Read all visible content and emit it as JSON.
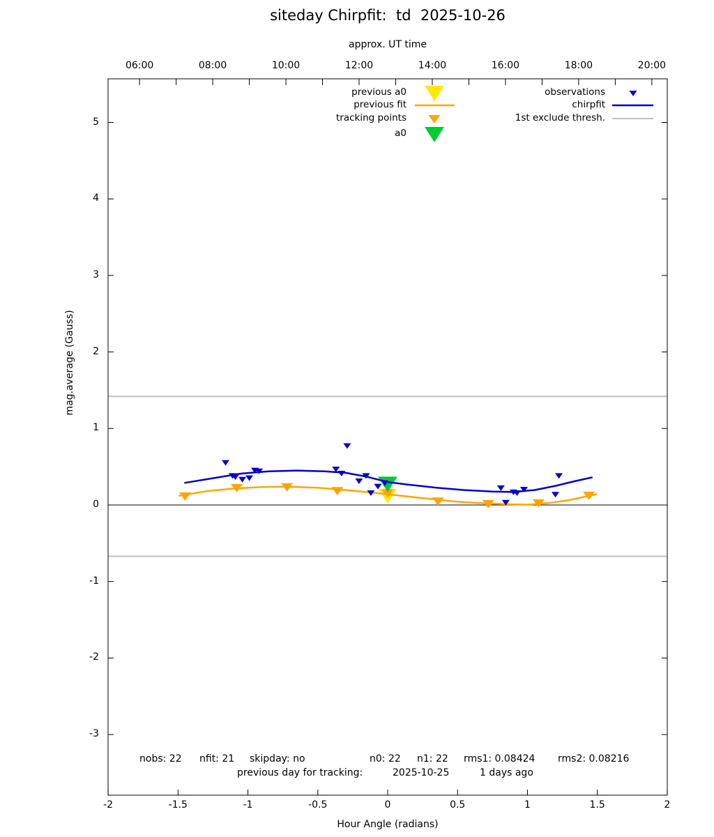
{
  "chart_data": {
    "type": "scatter",
    "title": "siteday Chirpfit:  td  2025-10-26",
    "top_axis": {
      "label": "approx. UT time",
      "ticks": [
        {
          "label": "06:00",
          "hour": 6
        },
        {
          "label": "08:00",
          "hour": 8
        },
        {
          "label": "10:00",
          "hour": 10
        },
        {
          "label": "12:00",
          "hour": 12
        },
        {
          "label": "14:00",
          "hour": 14
        },
        {
          "label": "16:00",
          "hour": 16
        },
        {
          "label": "18:00",
          "hour": 18
        },
        {
          "label": "20:00",
          "hour": 20
        }
      ],
      "minor_hours": [
        7,
        9,
        11,
        13,
        15,
        17,
        19
      ]
    },
    "x_axis": {
      "label": "Hour Angle (radians)",
      "range": [
        -2,
        2
      ],
      "ticks": [
        -2,
        -1.5,
        -1,
        -0.5,
        0,
        0.5,
        1,
        1.5,
        2
      ]
    },
    "y_axis": {
      "label": "mag.average (Gauss)",
      "range": [
        -3.8,
        5.6
      ],
      "ticks": [
        5,
        4,
        3,
        2,
        1,
        0,
        -1,
        -2,
        -3
      ]
    },
    "grid": false,
    "legend": {
      "left": [
        {
          "label": "previous a0",
          "swatch": "triangle",
          "size": "large",
          "series": "previous_a0"
        },
        {
          "label": "previous fit",
          "swatch": "line",
          "series": "previous_fit"
        },
        {
          "label": "tracking points",
          "swatch": "triangle",
          "size": "medium",
          "series": "tracking_points"
        },
        {
          "label": "a0",
          "swatch": "triangle",
          "size": "large",
          "series": "a0"
        }
      ],
      "right": [
        {
          "label": "observations",
          "swatch": "triangle",
          "size": "small",
          "series": "observations"
        },
        {
          "label": "chirpfit",
          "swatch": "line",
          "series": "chirpfit"
        },
        {
          "label": "1st exclude thresh.",
          "swatch": "line",
          "series": "exclude_threshold"
        }
      ]
    },
    "series": {
      "observations": {
        "color": "#0000cd",
        "marker": "triangle-down",
        "points": [
          [
            -1.16,
            0.55
          ],
          [
            -1.11,
            0.38
          ],
          [
            -1.09,
            0.365
          ],
          [
            -1.04,
            0.33
          ],
          [
            -0.99,
            0.35
          ],
          [
            -0.95,
            0.45
          ],
          [
            -0.92,
            0.44
          ],
          [
            -0.37,
            0.465
          ],
          [
            -0.33,
            0.41
          ],
          [
            -0.29,
            0.77
          ],
          [
            -0.205,
            0.31
          ],
          [
            -0.155,
            0.38
          ],
          [
            -0.12,
            0.155
          ],
          [
            -0.07,
            0.24
          ],
          [
            -0.02,
            0.285
          ],
          [
            0.81,
            0.22
          ],
          [
            0.845,
            0.03
          ],
          [
            0.9,
            0.165
          ],
          [
            0.925,
            0.155
          ],
          [
            0.975,
            0.2
          ],
          [
            1.2,
            0.135
          ],
          [
            1.225,
            0.38
          ]
        ]
      },
      "chirpfit": {
        "color": "#0000cd",
        "points": [
          [
            -1.45,
            0.29
          ],
          [
            -1.25,
            0.35
          ],
          [
            -1.05,
            0.41
          ],
          [
            -0.85,
            0.44
          ],
          [
            -0.65,
            0.45
          ],
          [
            -0.45,
            0.44
          ],
          [
            -0.3,
            0.42
          ],
          [
            -0.15,
            0.37
          ],
          [
            0.0,
            0.3
          ],
          [
            0.15,
            0.265
          ],
          [
            0.35,
            0.225
          ],
          [
            0.55,
            0.195
          ],
          [
            0.75,
            0.175
          ],
          [
            0.9,
            0.17
          ],
          [
            1.05,
            0.195
          ],
          [
            1.2,
            0.25
          ],
          [
            1.35,
            0.315
          ],
          [
            1.46,
            0.36
          ]
        ]
      },
      "tracking_points": {
        "color": "#ffa500",
        "marker": "triangle-down",
        "points": [
          [
            -1.45,
            0.11
          ],
          [
            -1.08,
            0.22
          ],
          [
            -0.72,
            0.23
          ],
          [
            -0.36,
            0.18
          ],
          [
            0.0,
            0.15
          ],
          [
            0.36,
            0.045
          ],
          [
            0.72,
            0.01
          ],
          [
            1.08,
            0.02
          ],
          [
            1.44,
            0.12
          ]
        ]
      },
      "previous_fit": {
        "color": "#ffa500",
        "points": [
          [
            -1.49,
            0.12
          ],
          [
            -1.3,
            0.18
          ],
          [
            -1.1,
            0.215
          ],
          [
            -0.9,
            0.235
          ],
          [
            -0.72,
            0.24
          ],
          [
            -0.5,
            0.225
          ],
          [
            -0.3,
            0.195
          ],
          [
            -0.1,
            0.16
          ],
          [
            0.05,
            0.13
          ],
          [
            0.25,
            0.09
          ],
          [
            0.45,
            0.05
          ],
          [
            0.65,
            0.025
          ],
          [
            0.85,
            0.01
          ],
          [
            1.0,
            0.005
          ],
          [
            1.15,
            0.025
          ],
          [
            1.3,
            0.065
          ],
          [
            1.43,
            0.115
          ],
          [
            1.49,
            0.14
          ]
        ]
      },
      "previous_a0": {
        "color": "#ffe800",
        "marker": "triangle-down",
        "points": [
          [
            0.0,
            0.115
          ]
        ]
      },
      "a0": {
        "color": "#00cc33",
        "marker": "triangle-down",
        "points": [
          [
            0.0,
            0.27
          ]
        ]
      },
      "exclude_threshold": {
        "color": "#c0c0c0",
        "values": [
          1.42,
          -0.67
        ]
      }
    },
    "stats_line1": [
      "nobs: 22",
      "nfit: 21",
      "skipday: no",
      "n0: 22",
      "n1: 22",
      "rms1: 0.08424",
      "rms2: 0.08216"
    ],
    "stats_line2": [
      "previous day for tracking:",
      "2025-10-25",
      "1 days ago"
    ]
  }
}
